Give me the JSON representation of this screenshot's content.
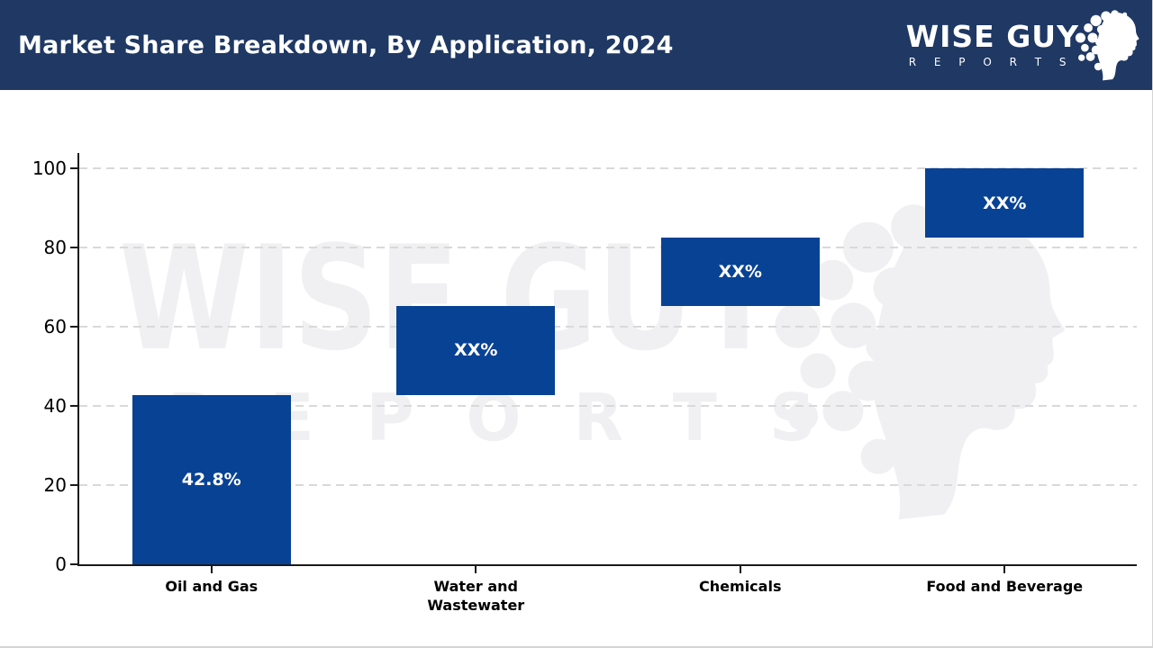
{
  "header": {
    "title": "Market Share Breakdown, By Application, 2024",
    "logo": {
      "name": "WISE GUY",
      "sub": "R E P O R T S"
    }
  },
  "watermark": {
    "line1": "WISE GUY",
    "line2": "REPORTS"
  },
  "chart_data": {
    "type": "bar",
    "subtype": "floating-waterfall",
    "title": "Market Share Breakdown, By Application, 2024",
    "categories": [
      "Oil and Gas",
      "Water and\nWastewater",
      "Chemicals",
      "Food and Beverage"
    ],
    "segments": [
      {
        "category": "Oil and Gas",
        "start": 0,
        "end": 42.8,
        "label": "42.8%"
      },
      {
        "category": "Water and Wastewater",
        "start": 42.8,
        "end": 65.2,
        "label": "XX%"
      },
      {
        "category": "Chemicals",
        "start": 65.2,
        "end": 82.5,
        "label": "XX%"
      },
      {
        "category": "Food and Beverage",
        "start": 82.5,
        "end": 100,
        "label": "XX%"
      }
    ],
    "ylim": [
      0,
      100
    ],
    "yticks": [
      0,
      20,
      40,
      60,
      80,
      100
    ],
    "grid": {
      "horizontal": true,
      "style": "dashed"
    },
    "legend": "none",
    "colors": {
      "bar": "#084294",
      "bar_label": "#ffffff",
      "axis": "#1a1a1a",
      "grid": "#d9d9d9",
      "header_bg": "#1f3864",
      "watermark": "#f0f0f2"
    }
  }
}
